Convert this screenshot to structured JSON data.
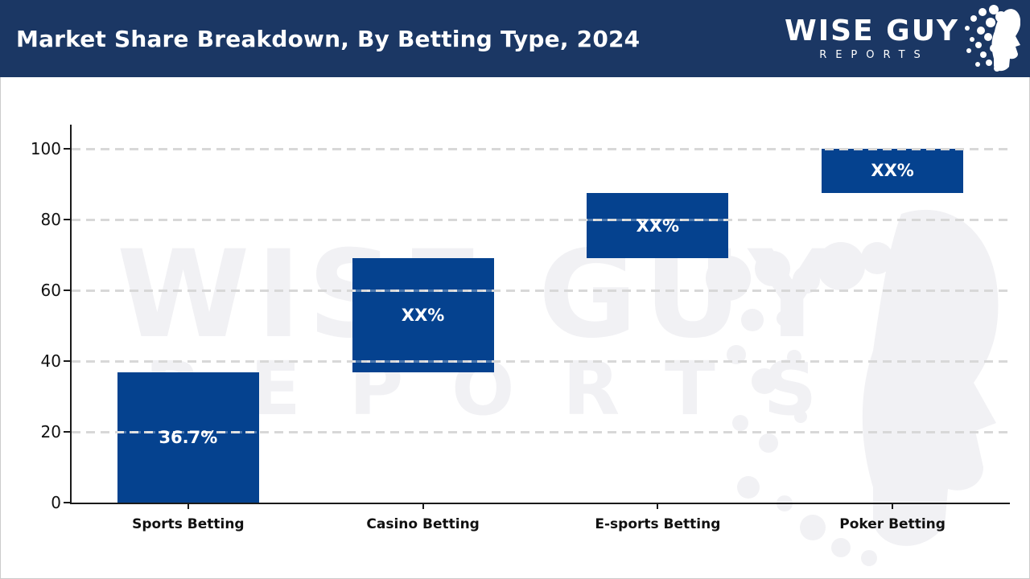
{
  "header": {
    "title": "Market Share Breakdown, By Betting Type, 2024",
    "logo": {
      "line1": "WISE GUY",
      "line2": "REPORTS"
    }
  },
  "watermark": {
    "line1": "WISE GUY",
    "line2": "REPORTS"
  },
  "chart_data": {
    "type": "bar",
    "subtype": "waterfall",
    "title": "Market Share Breakdown, By Betting Type, 2024",
    "categories": [
      "Sports Betting",
      "Casino Betting",
      "E-sports Betting",
      "Poker Betting"
    ],
    "segments": [
      {
        "category": "Sports Betting",
        "start": 0,
        "end": 36.7,
        "label": "36.7%"
      },
      {
        "category": "Casino Betting",
        "start": 36.7,
        "end": 69,
        "label": "XX%"
      },
      {
        "category": "E-sports Betting",
        "start": 69,
        "end": 87.5,
        "label": "XX%"
      },
      {
        "category": "Poker Betting",
        "start": 87.5,
        "end": 100,
        "label": "XX%"
      }
    ],
    "yticks": [
      0,
      20,
      40,
      60,
      80,
      100
    ],
    "ylim": [
      0,
      106.8
    ],
    "xlabel": "",
    "ylabel": "",
    "grid": "horizontal dashed",
    "legend": "none"
  },
  "colors": {
    "header_bg": "#1b3764",
    "bar": "#05428f",
    "bar_label": "#ffffff",
    "grid": "#d8d8d8",
    "grid_on_bar": "rgba(255,255,255,0.28)",
    "axis": "#1a1a1a",
    "watermark": "#f1f1f4",
    "border": "#cccccc"
  }
}
